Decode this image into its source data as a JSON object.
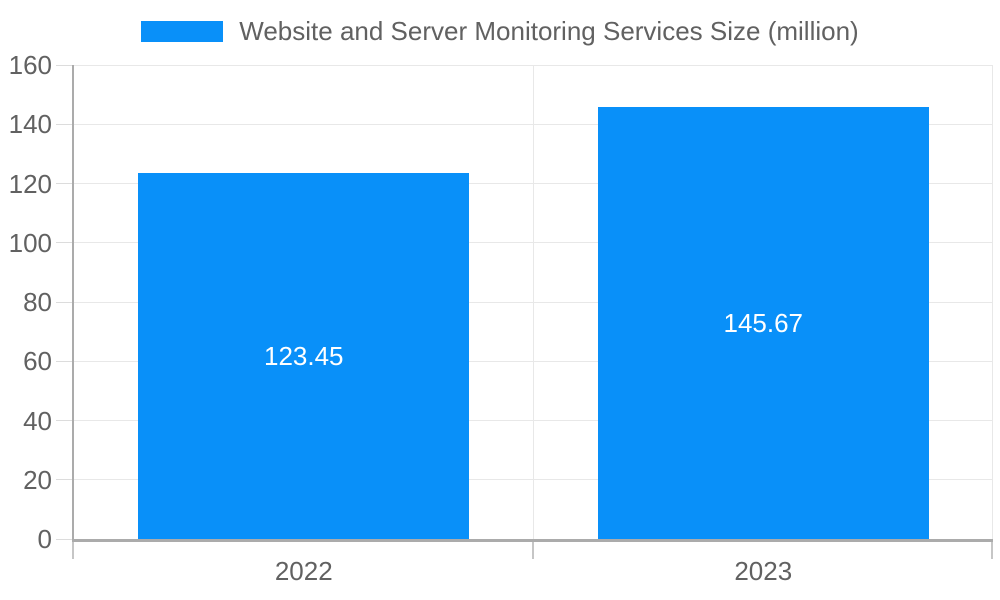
{
  "chart_data": {
    "type": "bar",
    "title": "Website and Server Monitoring Services Size (million)",
    "categories": [
      "2022",
      "2023"
    ],
    "series": [
      {
        "name": "Website and Server Monitoring Services Size (million)",
        "values": [
          123.45,
          145.67
        ]
      }
    ],
    "data_labels": [
      "123.45",
      "145.67"
    ],
    "xlabel": "",
    "ylabel": "",
    "ylim": [
      0,
      160
    ],
    "yticks": [
      0,
      20,
      40,
      60,
      80,
      100,
      120,
      140,
      160
    ],
    "grid": true,
    "legend_position": "top",
    "colors": {
      "bar": "#0990F9",
      "text": "#616161",
      "grid": "#E8E8E8",
      "axis": "#ABABAB",
      "y_tick": "#DCDCDC",
      "x_tick": "#C6C6C6",
      "data_label": "#FFFFFF",
      "background": "#FFFFFF"
    }
  }
}
